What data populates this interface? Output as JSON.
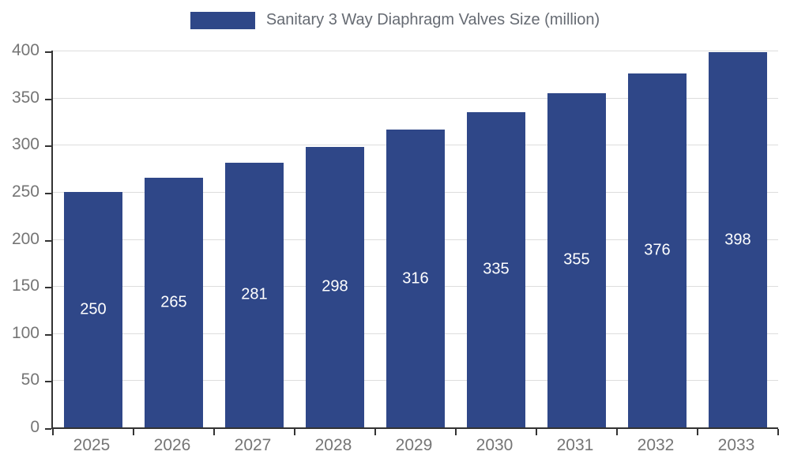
{
  "chart_data": {
    "type": "bar",
    "title": "Sanitary 3 Way Diaphragm Valves Size (million)",
    "categories": [
      "2025",
      "2026",
      "2027",
      "2028",
      "2029",
      "2030",
      "2031",
      "2032",
      "2033"
    ],
    "values": [
      250,
      265,
      281,
      298,
      316,
      335,
      355,
      376,
      398
    ],
    "xlabel": "",
    "ylabel": "",
    "ylim": [
      0,
      400
    ],
    "yticks": [
      0,
      50,
      100,
      150,
      200,
      250,
      300,
      350,
      400
    ],
    "grid": true,
    "legend_position": "top",
    "bar_color": "#2f4788",
    "value_label_color": "#ffffff",
    "axis_label_color": "#757575",
    "title_color": "#666b73",
    "gridline_color": "#dddddd",
    "axis_line_color": "#333333"
  }
}
